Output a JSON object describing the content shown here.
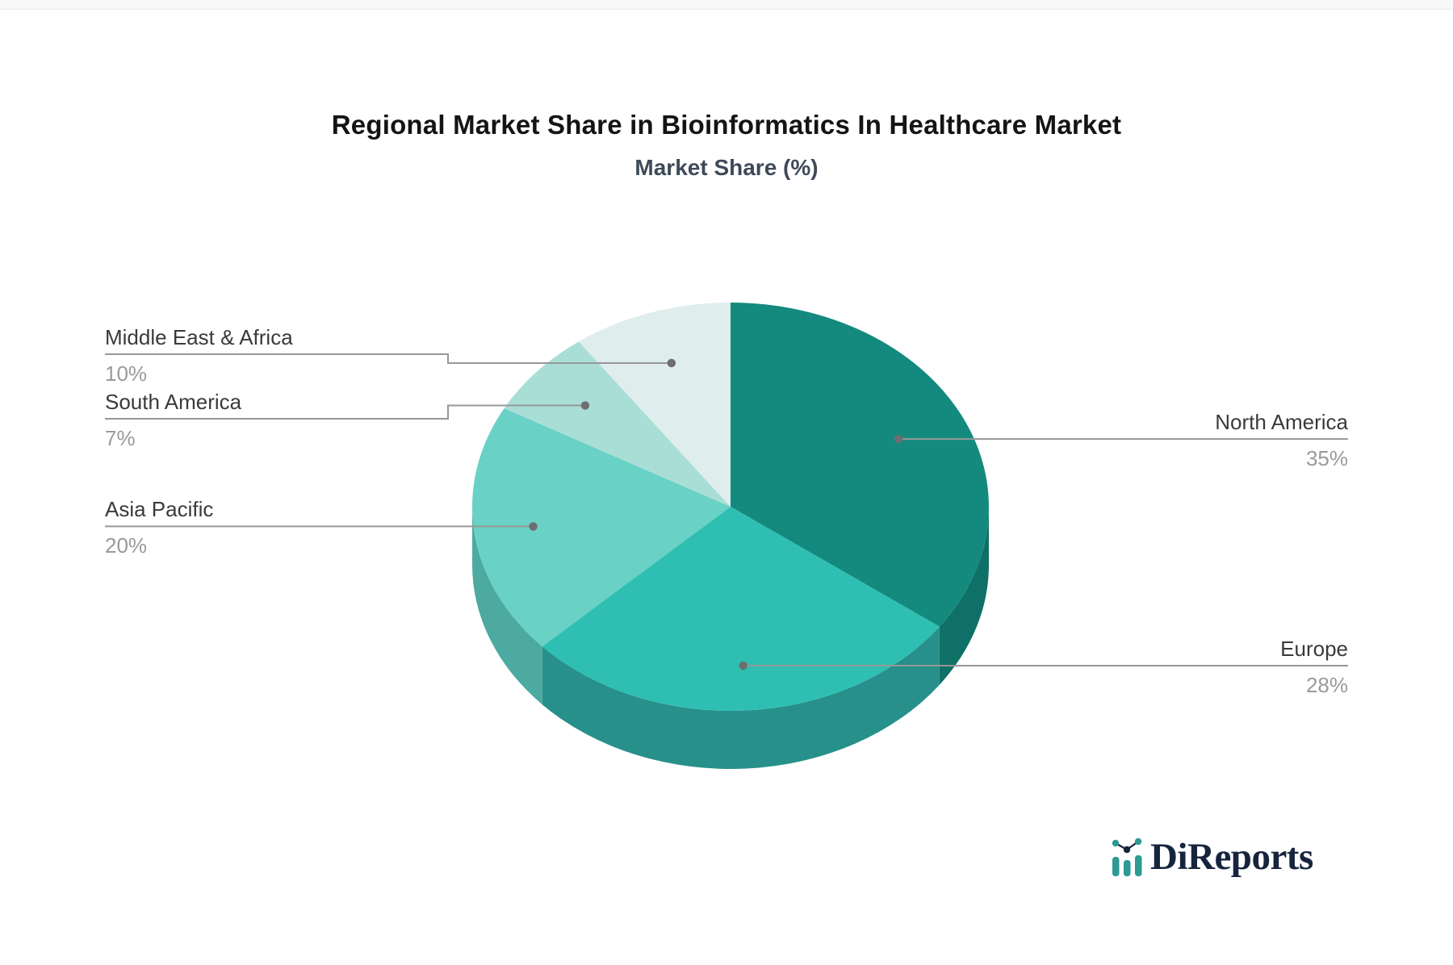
{
  "page": {
    "title": "Regional Market Share in Bioinformatics In Healthcare Market",
    "subtitle": "Market Share (%)"
  },
  "chart_data": {
    "type": "pie",
    "style": "3d",
    "title": "Regional Market Share in Bioinformatics In Healthcare Market",
    "subtitle": "Market Share (%)",
    "unit": "%",
    "start_angle_deg": 0,
    "direction": "clockwise",
    "legend_position": "callout-labels",
    "slices": [
      {
        "label": "North America",
        "value": 35,
        "display": "35%",
        "color": "#148a7f",
        "side_color": "#0e7066"
      },
      {
        "label": "Europe",
        "value": 28,
        "display": "28%",
        "color": "#2ebfb2",
        "side_color": "#27908a"
      },
      {
        "label": "Asia Pacific",
        "value": 20,
        "display": "20%",
        "color": "#69d1c5",
        "side_color": "#4caaa0"
      },
      {
        "label": "South America",
        "value": 7,
        "display": "7%",
        "color": "#a9ded6",
        "side_color": "#8ecabf"
      },
      {
        "label": "Middle East & Africa",
        "value": 10,
        "display": "10%",
        "color": "#dfeeec",
        "side_color": "#c2ddd8"
      }
    ]
  },
  "branding": {
    "logo_text": "DiReports",
    "logo_icon": "bar-chart-trend-icon",
    "logo_text_color": "#17243d",
    "logo_accent_color": "#2d9a94"
  },
  "colors": {
    "background": "#ffffff",
    "title_text": "#141414",
    "subtitle_text": "#3e4a59",
    "label_text": "#3a3a3a",
    "percent_text": "#9a9a9a",
    "leader_line": "#979797",
    "marker_dot": "#6e6e6e"
  }
}
